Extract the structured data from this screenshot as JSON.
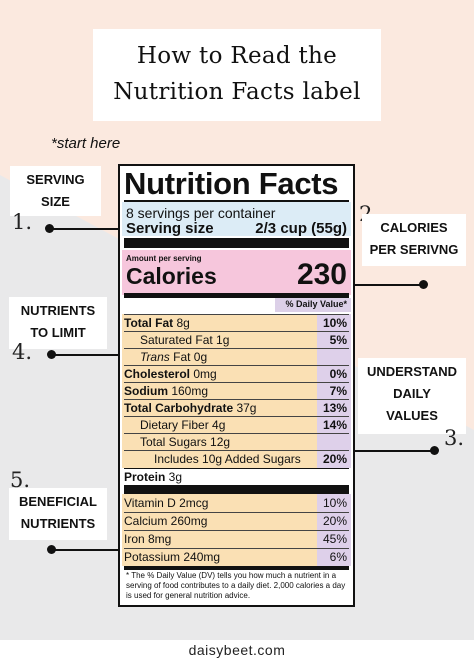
{
  "title_line1": "How to Read the",
  "title_line2": "Nutrition Facts label",
  "start_here": "*start here",
  "callouts": {
    "c1": {
      "num": "1.",
      "line1": "SERVING",
      "line2": "SIZE"
    },
    "c2": {
      "num": "2.",
      "line1": "CALORIES",
      "line2": "PER SERIVNG"
    },
    "c3": {
      "num": "3.",
      "line1": "UNDERSTAND",
      "line2": "DAILY",
      "line3": "VALUES"
    },
    "c4": {
      "num": "4.",
      "line1": "NUTRIENTS",
      "line2": "TO LIMIT"
    },
    "c5": {
      "num": "5.",
      "line1": "BENEFICIAL",
      "line2": "NUTRIENTS"
    }
  },
  "label": {
    "title": "Nutrition Facts",
    "servings": "8 servings per container",
    "serving_size_label": "Serving size",
    "serving_size_value": "2/3 cup (55g)",
    "amount_per_serving": "Amount per serving",
    "calories_label": "Calories",
    "calories_value": "230",
    "dv_header": "% Daily Value*",
    "rows": [
      {
        "bold": "Total Fat",
        "rest": " 8g",
        "dv": "10%"
      },
      {
        "bold": "",
        "rest": "Saturated Fat 1g",
        "dv": "5%"
      },
      {
        "italic": "Trans",
        "rest": " Fat 0g",
        "dv": ""
      },
      {
        "bold": "Cholesterol",
        "rest": " 0mg",
        "dv": "0%"
      },
      {
        "bold": "Sodium",
        "rest": " 160mg",
        "dv": "7%"
      },
      {
        "bold": "Total Carbohydrate",
        "rest": " 37g",
        "dv": "13%"
      },
      {
        "bold": "",
        "rest": "Dietary Fiber 4g",
        "dv": "14%"
      },
      {
        "bold": "",
        "rest": "Total Sugars 12g",
        "dv": ""
      },
      {
        "bold": "",
        "rest": "Includes 10g Added Sugars",
        "dv": "20%"
      },
      {
        "bold": "Protein",
        "rest": " 3g",
        "dv": ""
      }
    ],
    "vitamins": [
      {
        "name": "Vitamin D 2mcg",
        "dv": "10%"
      },
      {
        "name": "Calcium 260mg",
        "dv": "20%"
      },
      {
        "name": "Iron 8mg",
        "dv": "45%"
      },
      {
        "name": "Potassium 240mg",
        "dv": "6%"
      }
    ],
    "footnote": "* The % Daily Value (DV) tells you how much a nutrient in a serving of food contributes to a daily diet. 2,000 calories a day is used for general nutrition advice."
  },
  "footer": "daisybeet.com"
}
